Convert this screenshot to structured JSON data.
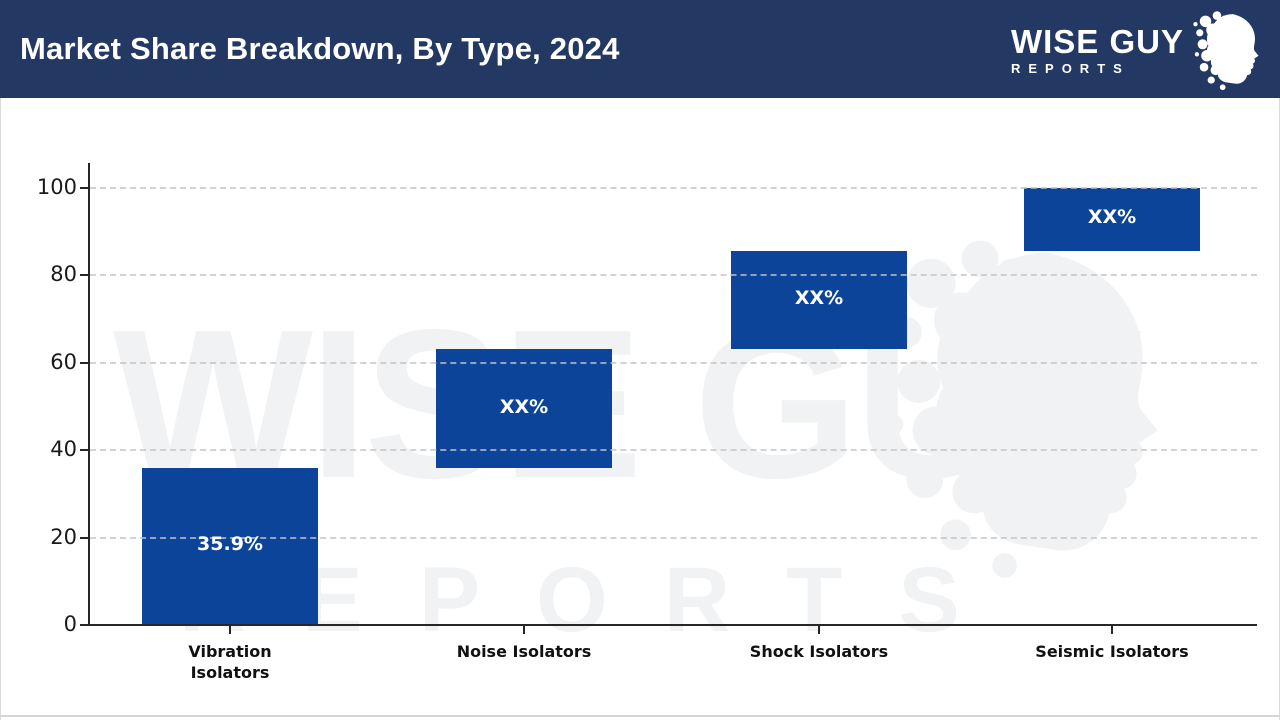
{
  "header": {
    "title": "Market Share Breakdown, By Type, 2024",
    "logo": {
      "line1": "WISE GUY",
      "line2": "REPORTS",
      "head_icon": "dotted-face-profile-icon"
    }
  },
  "watermark": {
    "line1": "WISE GUY",
    "line2": "REPORTS",
    "head_icon": "dotted-face-profile-icon"
  },
  "colors": {
    "header_bg": "#233863",
    "bar_fill": "#0c4499",
    "bar_label_text": "#ffffff",
    "grid_line": "#c3c3c3",
    "axis_line": "#262626",
    "watermark": "#f1f2f4"
  },
  "chart_data": {
    "type": "bar",
    "subtype": "floating-waterfall",
    "title": "Market Share Breakdown, By Type, 2024",
    "categories": [
      "Vibration Isolators",
      "Noise Isolators",
      "Shock Isolators",
      "Seismic Isolators"
    ],
    "category_display": [
      "Vibration\nIsolators",
      "Noise Isolators",
      "Shock Isolators",
      "Seismic Isolators"
    ],
    "segments": [
      {
        "category": "Vibration Isolators",
        "start": 0,
        "end": 35.9,
        "label": "35.9%"
      },
      {
        "category": "Noise Isolators",
        "start": 35.9,
        "end": 63,
        "label": "XX%"
      },
      {
        "category": "Shock Isolators",
        "start": 63,
        "end": 85.5,
        "label": "XX%"
      },
      {
        "category": "Seismic Isolators",
        "start": 85.5,
        "end": 100,
        "label": "XX%"
      }
    ],
    "xlabel": "",
    "ylabel": "",
    "yticks": [
      0,
      20,
      40,
      60,
      80,
      100
    ],
    "ylim": [
      0,
      105.7
    ],
    "grid": "dashed-horizontal",
    "legend": "none"
  }
}
